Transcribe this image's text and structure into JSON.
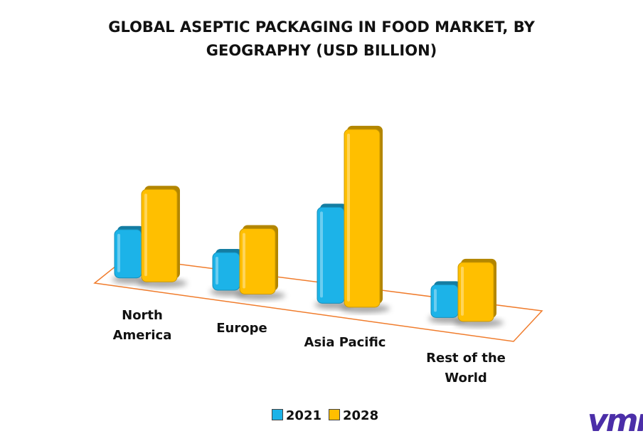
{
  "chart_data": {
    "type": "bar3d",
    "title": "GLOBAL ASEPTIC PACKAGING IN FOOD MARKET, BY GEOGRAPHY (USD BILLION)",
    "categories": [
      "North America",
      "Europe",
      "Asia Pacific",
      "Rest of the World"
    ],
    "series": [
      {
        "name": "2021",
        "color": "#1cb3e8",
        "values": [
          68,
          53,
          135,
          46
        ]
      },
      {
        "name": "2028",
        "color": "#ffbf00",
        "values": [
          130,
          92,
          250,
          83
        ]
      }
    ],
    "logo": "vmr"
  }
}
